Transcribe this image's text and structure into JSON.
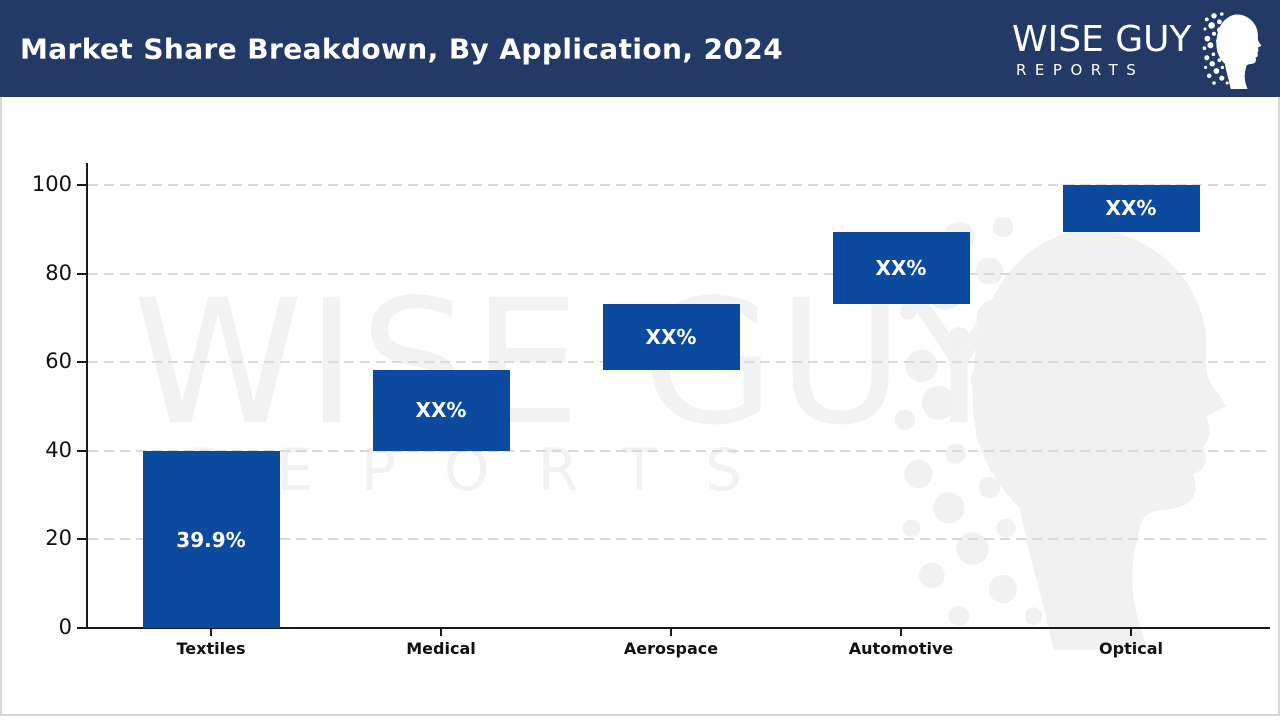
{
  "header": {
    "title": "Market Share Breakdown, By Application, 2024",
    "logo": {
      "line1": "WISE GUY",
      "line2": "REPORTS"
    }
  },
  "watermark": {
    "line1": "WISE GUY",
    "line2": "REPORTS"
  },
  "colors": {
    "header_bg": "#233a66",
    "bar": "#0b4a9e",
    "bar_label": "#ffffff",
    "axis": "#1a1a1a",
    "gridline": "#dadada",
    "tick_label": "#111111",
    "watermark": "#f2f2f2",
    "panel_border": "#d6d6d6"
  },
  "chart_data": {
    "type": "bar",
    "subtype": "waterfall",
    "title": "Market Share Breakdown, By Application, 2024",
    "categories": [
      "Textiles",
      "Medical",
      "Aerospace",
      "Automotive",
      "Optical"
    ],
    "segments": [
      {
        "category": "Textiles",
        "start": 0,
        "end": 39.9,
        "label": "39.9%"
      },
      {
        "category": "Medical",
        "start": 39.9,
        "end": 58.3,
        "label": "XX%"
      },
      {
        "category": "Aerospace",
        "start": 58.3,
        "end": 73.2,
        "label": "XX%"
      },
      {
        "category": "Automotive",
        "start": 73.2,
        "end": 89.4,
        "label": "XX%"
      },
      {
        "category": "Optical",
        "start": 89.4,
        "end": 100,
        "label": "XX%"
      }
    ],
    "xlabel": "",
    "ylabel": "",
    "ylim": [
      0,
      100
    ],
    "yticks": [
      0,
      20,
      40,
      60,
      80,
      100
    ],
    "grid": "horizontal-dashed",
    "legend": "none"
  }
}
